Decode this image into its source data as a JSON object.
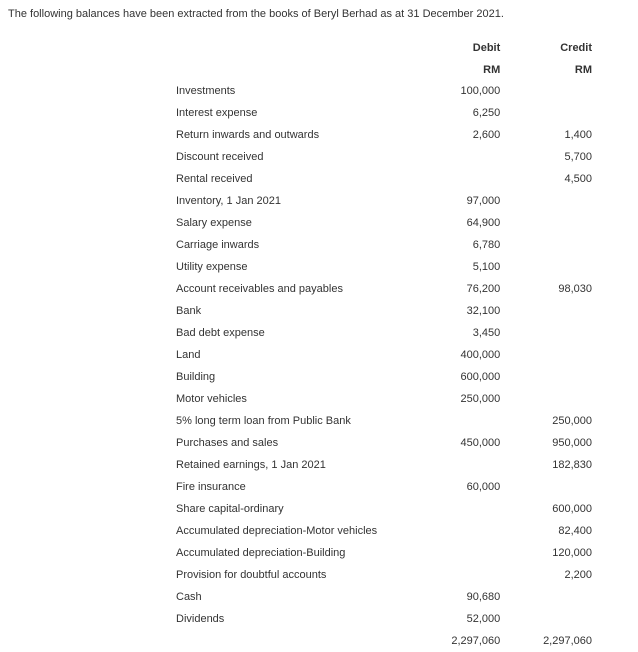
{
  "intro": "The following balances have been extracted from the books of Beryl Berhad as at 31 December 2021.",
  "headers": {
    "debit": "Debit",
    "credit": "Credit",
    "rm1": "RM",
    "rm2": "RM"
  },
  "rows": [
    {
      "label": "Investments",
      "debit": "100,000",
      "credit": ""
    },
    {
      "label": "Interest expense",
      "debit": "6,250",
      "credit": ""
    },
    {
      "label": "Return inwards and outwards",
      "debit": "2,600",
      "credit": "1,400"
    },
    {
      "label": "Discount received",
      "debit": "",
      "credit": "5,700"
    },
    {
      "label": "Rental received",
      "debit": "",
      "credit": "4,500"
    },
    {
      "label": "Inventory, 1 Jan 2021",
      "debit": "97,000",
      "credit": ""
    },
    {
      "label": "Salary expense",
      "debit": "64,900",
      "credit": ""
    },
    {
      "label": "Carriage inwards",
      "debit": "6,780",
      "credit": ""
    },
    {
      "label": "Utility expense",
      "debit": "5,100",
      "credit": ""
    },
    {
      "label": "Account receivables and payables",
      "debit": "76,200",
      "credit": "98,030"
    },
    {
      "label": "Bank",
      "debit": "32,100",
      "credit": ""
    },
    {
      "label": "Bad debt expense",
      "debit": "3,450",
      "credit": ""
    },
    {
      "label": "Land",
      "debit": "400,000",
      "credit": ""
    },
    {
      "label": "Building",
      "debit": "600,000",
      "credit": ""
    },
    {
      "label": "Motor vehicles",
      "debit": "250,000",
      "credit": ""
    },
    {
      "label": "5% long term loan from Public Bank",
      "debit": "",
      "credit": "250,000"
    },
    {
      "label": "Purchases and sales",
      "debit": "450,000",
      "credit": "950,000"
    },
    {
      "label": "Retained earnings, 1 Jan 2021",
      "debit": "",
      "credit": "182,830"
    },
    {
      "label": "Fire insurance",
      "debit": "60,000",
      "credit": ""
    },
    {
      "label": "Share capital-ordinary",
      "debit": "",
      "credit": "600,000"
    },
    {
      "label": "Accumulated depreciation-Motor vehicles",
      "debit": "",
      "credit": "82,400"
    },
    {
      "label": "Accumulated depreciation-Building",
      "debit": "",
      "credit": "120,000"
    },
    {
      "label": "Provision for doubtful accounts",
      "debit": "",
      "credit": "2,200"
    },
    {
      "label": "Cash",
      "debit": "90,680",
      "credit": ""
    },
    {
      "label": "Dividends",
      "debit": "52,000",
      "credit": ""
    }
  ],
  "totals": {
    "debit": "2,297,060",
    "credit": "2,297,060"
  }
}
